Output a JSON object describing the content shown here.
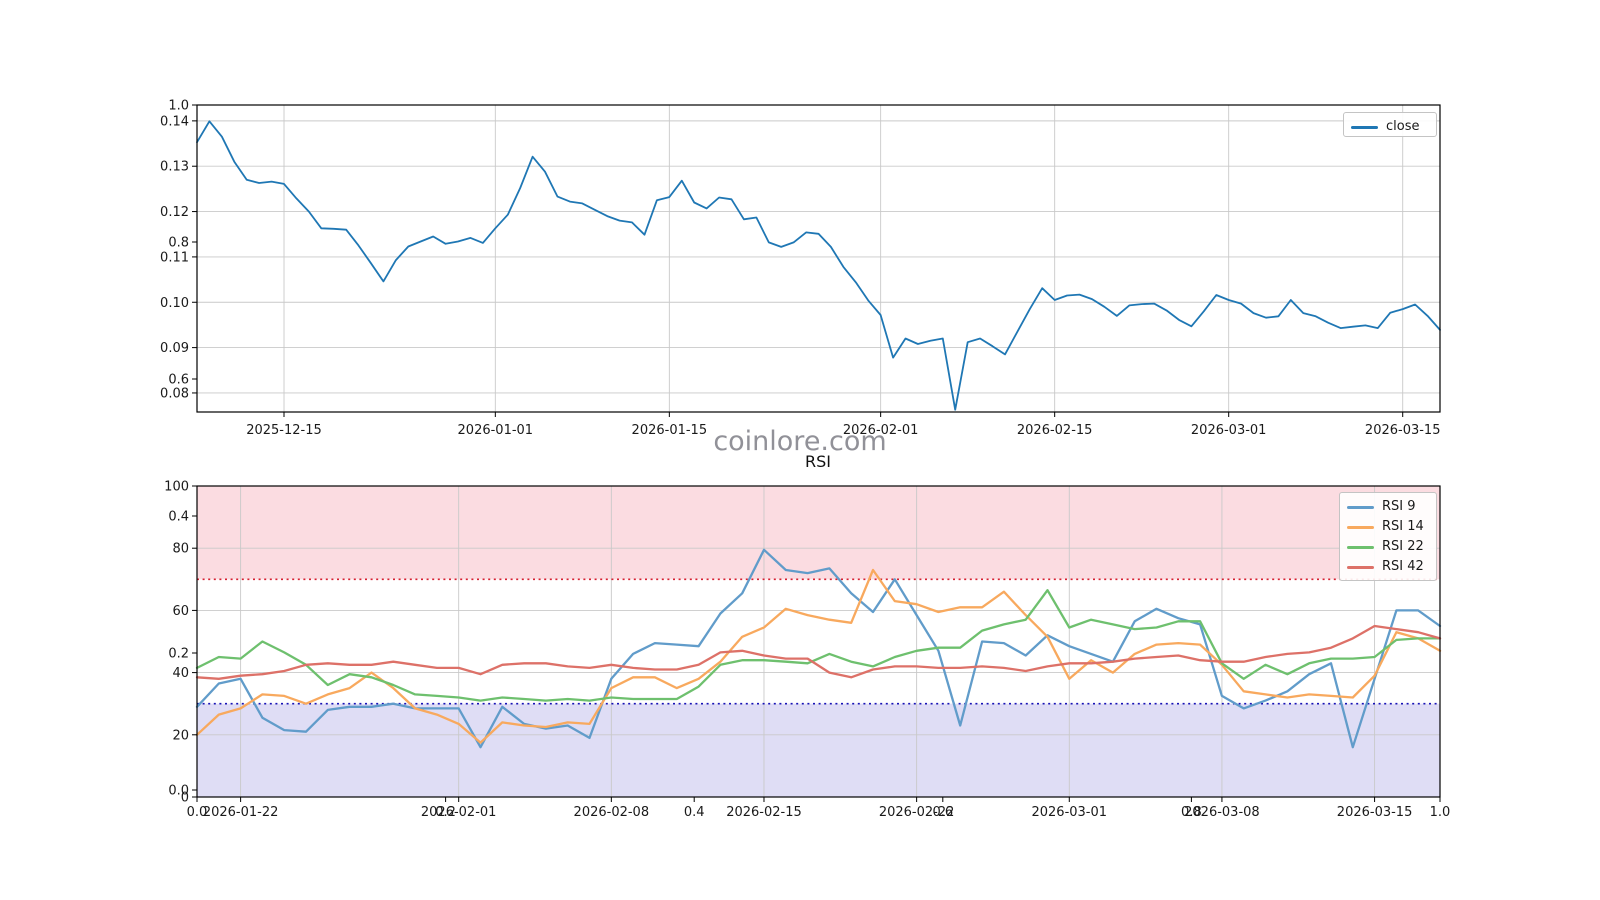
{
  "watermark": "coinlore.com",
  "overlay_axis": {
    "y_labels": [
      "1.0",
      "0.8",
      "0.6",
      "0.4",
      "0.2",
      "0.0"
    ],
    "x_labels": [
      "0.0",
      "0.2",
      "0.4",
      "0.6",
      "0.8",
      "1.0"
    ]
  },
  "chart_data": [
    {
      "type": "line",
      "name": "price",
      "title": "",
      "legend_position": "top-right",
      "legend": [
        "close"
      ],
      "ylim": [
        0.0758,
        0.1435
      ],
      "grid": true,
      "x_ticks": [
        {
          "label": "2025-12-15",
          "index": 7
        },
        {
          "label": "2026-01-01",
          "index": 24
        },
        {
          "label": "2026-01-15",
          "index": 38
        },
        {
          "label": "2026-02-01",
          "index": 55
        },
        {
          "label": "2026-02-15",
          "index": 69
        },
        {
          "label": "2026-03-01",
          "index": 83
        },
        {
          "label": "2026-03-15",
          "index": 97
        }
      ],
      "y_ticks": [
        {
          "label": "0.08",
          "value": 0.08
        },
        {
          "label": "0.09",
          "value": 0.09
        },
        {
          "label": "0.10",
          "value": 0.1
        },
        {
          "label": "0.11",
          "value": 0.11
        },
        {
          "label": "0.12",
          "value": 0.12
        },
        {
          "label": "0.13",
          "value": 0.13
        },
        {
          "label": "0.14",
          "value": 0.14
        }
      ],
      "series": [
        {
          "name": "close",
          "color": "#1f77b4",
          "values": [
            0.1353,
            0.1399,
            0.1365,
            0.131,
            0.127,
            0.1263,
            0.1266,
            0.1261,
            0.1229,
            0.12,
            0.1163,
            0.1162,
            0.116,
            0.1125,
            0.1086,
            0.1046,
            0.1093,
            0.1123,
            0.1134,
            0.1145,
            0.1129,
            0.1134,
            0.1142,
            0.1131,
            0.1163,
            0.1193,
            0.1252,
            0.1321,
            0.1288,
            0.1233,
            0.1222,
            0.1218,
            0.1204,
            0.119,
            0.118,
            0.1176,
            0.1149,
            0.1225,
            0.1232,
            0.1268,
            0.122,
            0.1207,
            0.1231,
            0.1227,
            0.1183,
            0.1187,
            0.1132,
            0.1122,
            0.1132,
            0.1154,
            0.1151,
            0.1122,
            0.1078,
            0.1044,
            0.1004,
            0.0972,
            0.0878,
            0.092,
            0.0908,
            0.0915,
            0.092,
            0.0763,
            0.0912,
            0.092,
            0.0903,
            0.0885,
            0.0935,
            0.0985,
            0.1031,
            0.1005,
            0.1015,
            0.1017,
            0.1007,
            0.099,
            0.097,
            0.0993,
            0.0996,
            0.0997,
            0.0982,
            0.0961,
            0.0947,
            0.098,
            0.1016,
            0.1005,
            0.0997,
            0.0976,
            0.0966,
            0.0969,
            0.1005,
            0.0976,
            0.0969,
            0.0955,
            0.0943,
            0.0946,
            0.0949,
            0.0943,
            0.0977,
            0.0985,
            0.0995,
            0.097,
            0.0939
          ]
        }
      ]
    },
    {
      "type": "line",
      "name": "rsi",
      "title": "RSI",
      "legend_position": "top-right",
      "legend": [
        "RSI 9",
        "RSI 14",
        "RSI 22",
        "RSI 42"
      ],
      "ylim": [
        0,
        100
      ],
      "grid": true,
      "overbought": {
        "level": 70,
        "band_color": "#fbdce1",
        "line_color": "#d61f30"
      },
      "oversold": {
        "level": 30,
        "band_color": "#dfddf5",
        "line_color": "#1712b5"
      },
      "x_ticks": [
        {
          "label": "2026-01-22",
          "index": 2
        },
        {
          "label": "2026-02-01",
          "index": 12
        },
        {
          "label": "2026-02-08",
          "index": 19
        },
        {
          "label": "2026-02-15",
          "index": 26
        },
        {
          "label": "2026-02-22",
          "index": 33
        },
        {
          "label": "2026-03-01",
          "index": 40
        },
        {
          "label": "2026-03-08",
          "index": 47
        },
        {
          "label": "2026-03-15",
          "index": 54
        }
      ],
      "y_ticks": [
        {
          "label": "0",
          "value": 0
        },
        {
          "label": "20",
          "value": 20
        },
        {
          "label": "40",
          "value": 40
        },
        {
          "label": "60",
          "value": 60
        },
        {
          "label": "80",
          "value": 80
        },
        {
          "label": "100",
          "value": 100
        }
      ],
      "series": [
        {
          "name": "RSI 9",
          "color": "#619cca",
          "values": [
            29,
            36.5,
            38,
            25.5,
            21.5,
            21,
            28,
            29,
            29,
            30,
            28.5,
            28.5,
            28.5,
            16,
            29,
            23.5,
            22,
            23,
            19,
            38,
            46,
            49.5,
            49,
            48.5,
            59,
            65.5,
            79.5,
            73,
            72,
            73.5,
            65.5,
            59.5,
            70,
            58.5,
            47,
            23,
            50,
            49.5,
            45.5,
            52,
            48.5,
            46,
            43.5,
            56.5,
            60.5,
            57.5,
            55.5,
            32.5,
            28.5,
            31,
            34,
            39.5,
            43,
            16,
            38,
            60,
            60,
            55
          ]
        },
        {
          "name": "RSI 14",
          "color": "#f8a95e",
          "values": [
            20,
            26.5,
            28.5,
            33,
            32.5,
            30,
            33,
            35,
            40,
            35,
            28.5,
            26.5,
            23.5,
            17.5,
            24,
            23,
            22.5,
            24,
            23.5,
            35,
            38.5,
            38.5,
            35,
            38,
            43.5,
            51.5,
            54.5,
            60.5,
            58.5,
            57,
            56,
            73,
            63,
            62,
            59.5,
            61,
            61,
            66,
            58.5,
            51.5,
            38,
            44,
            40,
            46,
            49,
            49.5,
            49,
            42.5,
            34,
            33,
            32,
            33,
            32.5,
            32,
            39,
            53,
            51,
            47
          ]
        },
        {
          "name": "RSI 22",
          "color": "#6ec06e",
          "values": [
            41.5,
            45,
            44.5,
            50,
            46.5,
            42.5,
            36,
            39.5,
            38.5,
            36,
            33,
            32.5,
            32,
            31,
            32,
            31.5,
            31,
            31.5,
            31,
            32,
            31.5,
            31.5,
            31.5,
            35.5,
            42.5,
            44,
            44,
            43.5,
            43,
            46,
            43.5,
            42,
            45,
            47,
            48,
            48,
            53.5,
            55.5,
            57,
            66.5,
            54.5,
            57,
            55.5,
            54,
            54.5,
            56.5,
            56.5,
            43,
            38,
            42.5,
            39.5,
            43,
            44.5,
            44.5,
            45,
            50.5,
            51,
            51
          ]
        },
        {
          "name": "RSI 42",
          "color": "#dd7168",
          "values": [
            38.5,
            38,
            39,
            39.5,
            40.5,
            42.5,
            43,
            42.5,
            42.5,
            43.5,
            42.5,
            41.5,
            41.5,
            39.5,
            42.5,
            43,
            43,
            42,
            41.5,
            42.5,
            41.5,
            41,
            41,
            42.5,
            46.5,
            47,
            45.5,
            44.5,
            44.5,
            40,
            38.5,
            41,
            42,
            42,
            41.5,
            41.5,
            42,
            41.5,
            40.5,
            42,
            43,
            43,
            43.5,
            44.5,
            45,
            45.5,
            44,
            43.5,
            43.5,
            45,
            46,
            46.5,
            48,
            51,
            55,
            54,
            53,
            51
          ]
        }
      ]
    }
  ]
}
